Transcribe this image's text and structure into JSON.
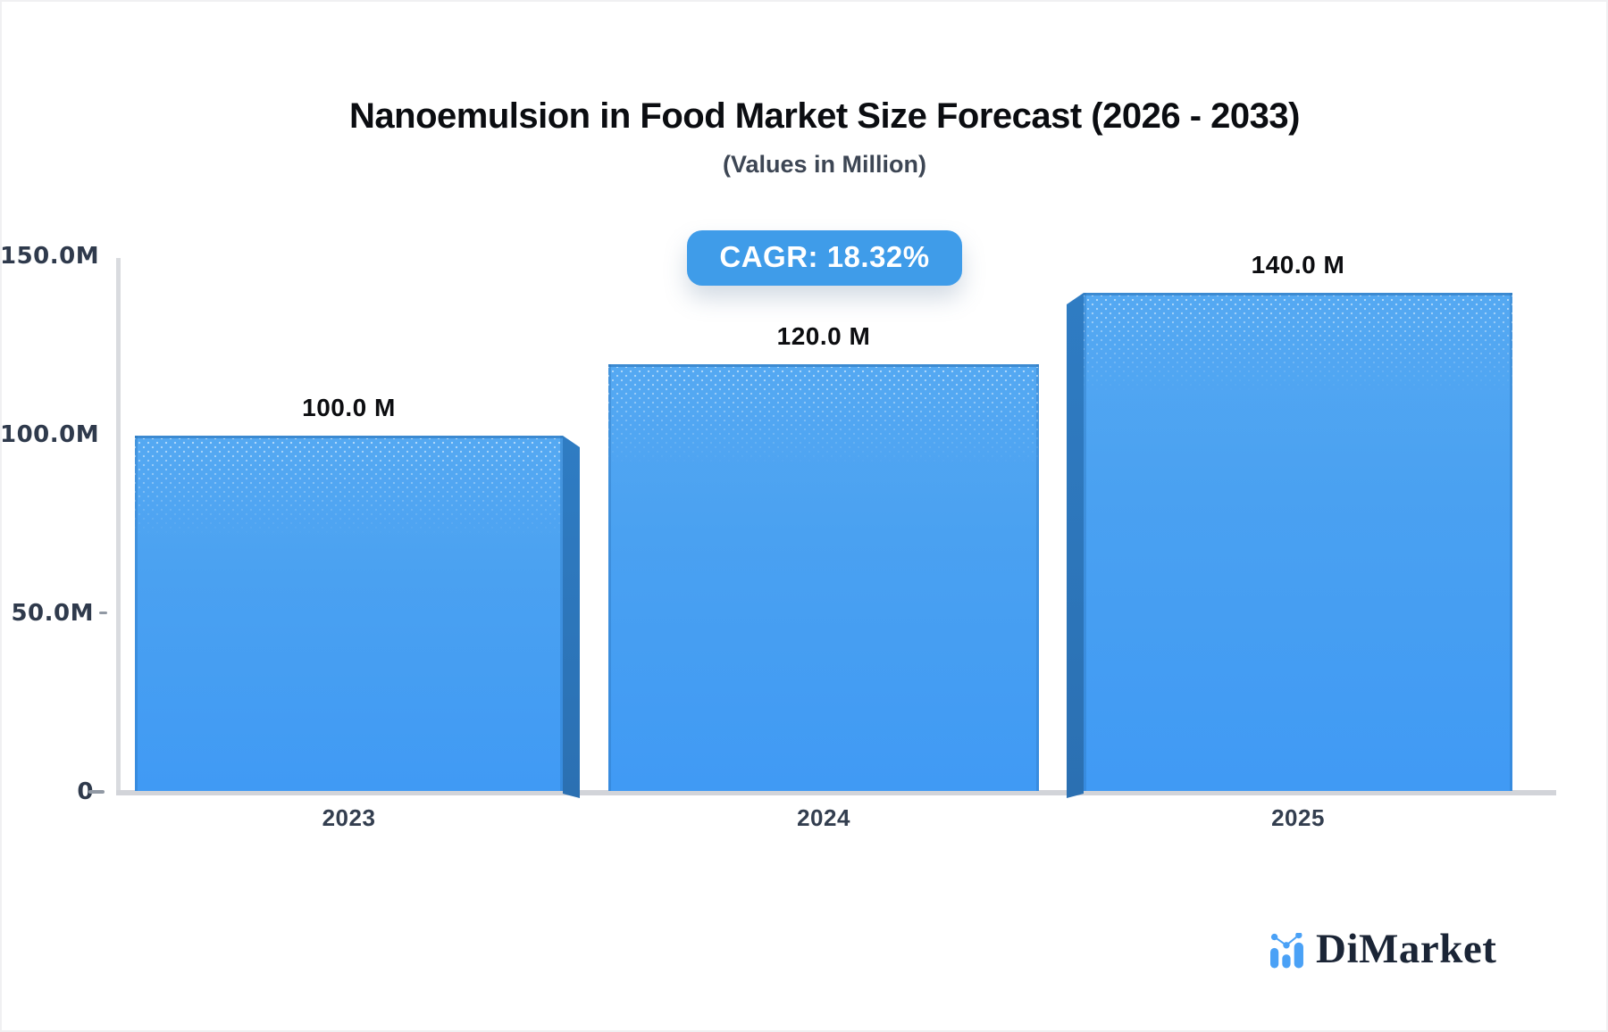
{
  "header": {
    "title": "Nanoemulsion in Food Market Size Forecast (2026 - 2033)",
    "subtitle": "(Values in Million)",
    "cagr_badge": "CAGR: 18.32%"
  },
  "chart_data": {
    "type": "bar",
    "title": "Nanoemulsion in Food Market Size Forecast (2026 - 2033)",
    "subtitle": "(Values in Million)",
    "unit": "Million",
    "cagr_percent": 18.32,
    "categories": [
      "2023",
      "2024",
      "2025"
    ],
    "values": [
      100.0,
      120.0,
      140.0
    ],
    "value_labels": [
      "100.0 M",
      "120.0 M",
      "140.0 M"
    ],
    "ylim": [
      0,
      150
    ],
    "yticks": [
      {
        "value": 150,
        "label": "150.0M",
        "dash": false
      },
      {
        "value": 100,
        "label": "100.0M",
        "dash": false
      },
      {
        "value": 50,
        "label": "50.0M",
        "dash": true
      },
      {
        "value": 0,
        "label": "0",
        "dash": true
      }
    ],
    "grid": false,
    "legend": "none",
    "bar_style": {
      "face_color": "#49a0f1",
      "side_color": "#2d74b8",
      "perspective_sides": [
        "right",
        "none",
        "left"
      ]
    }
  },
  "footer": {
    "brand": "DiMarket",
    "logo_icon": "mini-bar-line-chart",
    "logo_blue": "#4aa1f6",
    "brand_text_color": "#1b2536"
  }
}
